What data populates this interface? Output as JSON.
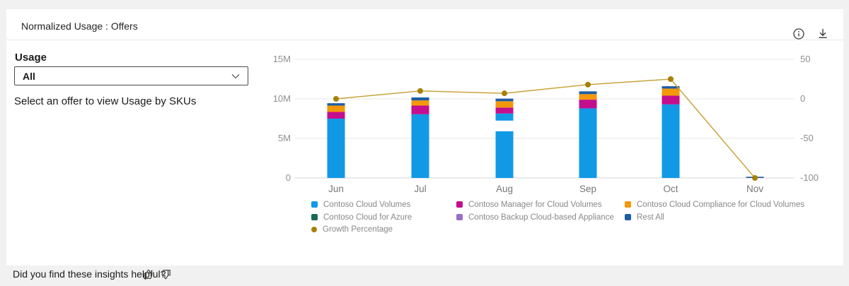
{
  "header": {
    "title": "Normalized Usage : Offers",
    "info_icon": "info-icon",
    "download_icon": "download-icon"
  },
  "filter_panel": {
    "usage_label": "Usage",
    "dropdown_value": "All",
    "helper_text": "Select an offer to view Usage by SKUs"
  },
  "footer": {
    "question": "Did you find these insights helpful?",
    "thumbs_up_icon": "thumbs-up-icon",
    "thumbs_down_icon": "thumbs-down-icon"
  },
  "chart_data": {
    "type": "bar",
    "subtype": "stacked-bars-with-line-overlay",
    "categories": [
      "Jun",
      "Jul",
      "Aug",
      "Sep",
      "Oct",
      "Nov"
    ],
    "series": [
      {
        "name": "Contoso Cloud Volumes",
        "color": "#1199E6",
        "values": [
          7.5,
          8.05,
          6.8,
          8.8,
          9.3,
          0
        ]
      },
      {
        "name": "Contoso Manager for Cloud Volumes",
        "color": "#C30E8E",
        "values": [
          0.85,
          1.1,
          0.75,
          1.1,
          1.1,
          0
        ]
      },
      {
        "name": "Contoso Cloud Compliance for Cloud Volumes",
        "color": "#F39809",
        "values": [
          0.8,
          0.65,
          0.8,
          0.7,
          0.9,
          0
        ]
      },
      {
        "name": "Contoso Cloud for Azure",
        "color": "#186A57",
        "values": [
          0,
          0,
          0,
          0,
          0,
          0
        ]
      },
      {
        "name": "Contoso Backup Cloud-based Appliance",
        "color": "#9C6CC9",
        "values": [
          0,
          0,
          0,
          0,
          0,
          0
        ]
      },
      {
        "name": "Rest All",
        "color": "#1E5CA5",
        "values": [
          0.3,
          0.38,
          0.33,
          0.35,
          0.3,
          0.15
        ]
      }
    ],
    "line_series": {
      "name": "Growth Percentage",
      "values": [
        0,
        10,
        7,
        18,
        25,
        -100
      ],
      "line_color": "#C9A43C",
      "dot_color": "#A87F08"
    },
    "bar_anomaly": {
      "month": "Aug",
      "series": "Contoso Cloud Volumes",
      "lower_segment_m": 5.9,
      "gap_m": 1.35,
      "upper_segment_m": 0.9
    },
    "left_axis": {
      "tick_labels": [
        "0",
        "5M",
        "10M",
        "15M"
      ],
      "tick_values_m": [
        0,
        5,
        10,
        15
      ],
      "range_m": [
        0,
        15
      ]
    },
    "right_axis": {
      "tick_labels": [
        "-100",
        "-50",
        "0",
        "50"
      ],
      "tick_values": [
        -100,
        -50,
        0,
        50
      ],
      "range": [
        -100,
        50
      ]
    },
    "grid": "horizontal",
    "legend_position": "bottom",
    "axis_text_color": "#8f8f8f",
    "month_text_color": "#777777",
    "gridline_color": "#e7e7e7",
    "baseline_color": "#d5d5d5"
  }
}
